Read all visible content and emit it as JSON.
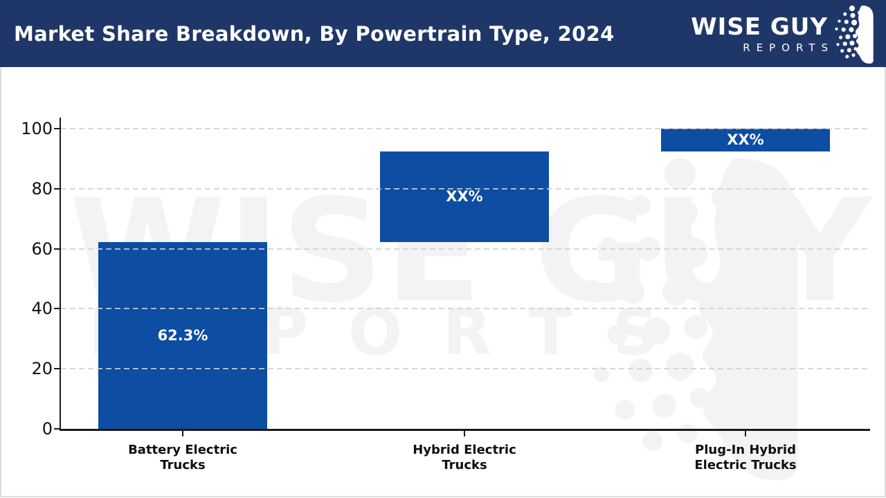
{
  "header": {
    "title": "Market Share Breakdown, By Powertrain Type, 2024",
    "bg_color": "#1f3768",
    "logo": {
      "line1": "WISE GUY",
      "line2": "REPORTS"
    }
  },
  "watermark": {
    "line1": "WISE GUY",
    "line2": "REPORTS"
  },
  "colors": {
    "bar_blue": "#0d4da2",
    "header_navy": "#1f3768",
    "gridline_gray": "#d0d0d0",
    "watermark_gray": "#f3f3f5"
  },
  "chart_data": {
    "type": "bar",
    "subtype": "stacked-waterfall-segments",
    "title": "Market Share Breakdown, By Powertrain Type, 2024",
    "categories": [
      "Battery Electric Trucks",
      "Hybrid Electric Trucks",
      "Plug-In Hybrid Electric Trucks"
    ],
    "category_lines": [
      [
        "Battery Electric",
        "Trucks"
      ],
      [
        "Hybrid Electric",
        "Trucks"
      ],
      [
        "Plug-In Hybrid",
        "Electric Trucks"
      ]
    ],
    "bars": [
      {
        "category": "Battery Electric Trucks",
        "label": "62.3%",
        "start": 0,
        "end": 62.3
      },
      {
        "category": "Hybrid Electric Trucks",
        "label": "XX%",
        "start": 62.3,
        "end": 92.4
      },
      {
        "category": "Plug-In Hybrid Electric Trucks",
        "label": "XX%",
        "start": 92.4,
        "end": 100
      }
    ],
    "ylim": [
      0,
      100
    ],
    "yticks": [
      0,
      20,
      40,
      60,
      80,
      100
    ],
    "xlabel": "",
    "ylabel": "",
    "grid": "horizontal-dashed-over-bars",
    "legend": "none",
    "bar_color": "#0d4da2"
  }
}
